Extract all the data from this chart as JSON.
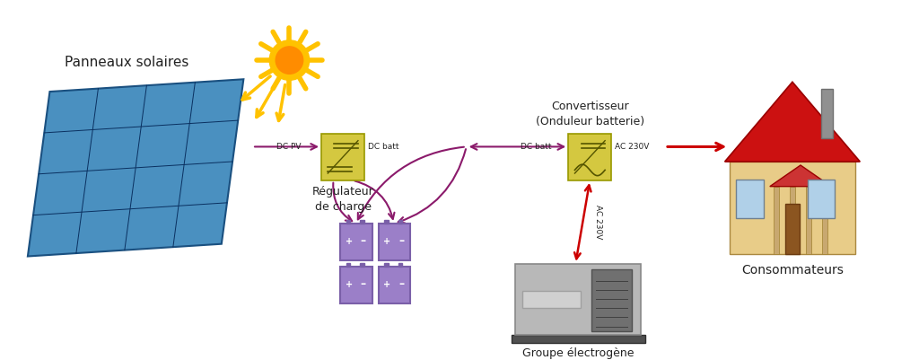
{
  "bg_color": "#ffffff",
  "labels": {
    "panneaux": "Panneaux solaires",
    "regulateur": "Régulateur\nde charge",
    "convertisseur": "Convertisseur\n(Onduleur batterie)",
    "consommateurs": "Consommateurs",
    "groupe": "Groupe électrogène",
    "dc_pv": "DC PV",
    "dc_batt1": "DC batt",
    "dc_batt2": "DC batt",
    "ac_230v1": "AC 230V",
    "ac_230v2": "AC 230V"
  },
  "sun_outer": "#FFC200",
  "sun_inner": "#FF8C00",
  "solar_blue": "#4A90C0",
  "solar_dark": "#1A5080",
  "solar_line": "#0A3060",
  "reg_box": "#D4C840",
  "reg_edge": "#999900",
  "conv_box": "#D4C840",
  "conv_edge": "#999900",
  "bat_fill": "#9B7FC8",
  "bat_dark": "#7A5FA8",
  "arrow_dc": "#8B1A6B",
  "arrow_ac": "#CC0000",
  "house_wall": "#E8CC88",
  "house_roof": "#CC1111",
  "house_door": "#8B5520",
  "house_window": "#B0D0E8",
  "house_col": "#C8A870",
  "gen_body": "#B8B8B8",
  "gen_dark": "#888888",
  "gen_base": "#505050",
  "chimney": "#909090",
  "symbol_color": "#555500",
  "text_color": "#222222"
}
